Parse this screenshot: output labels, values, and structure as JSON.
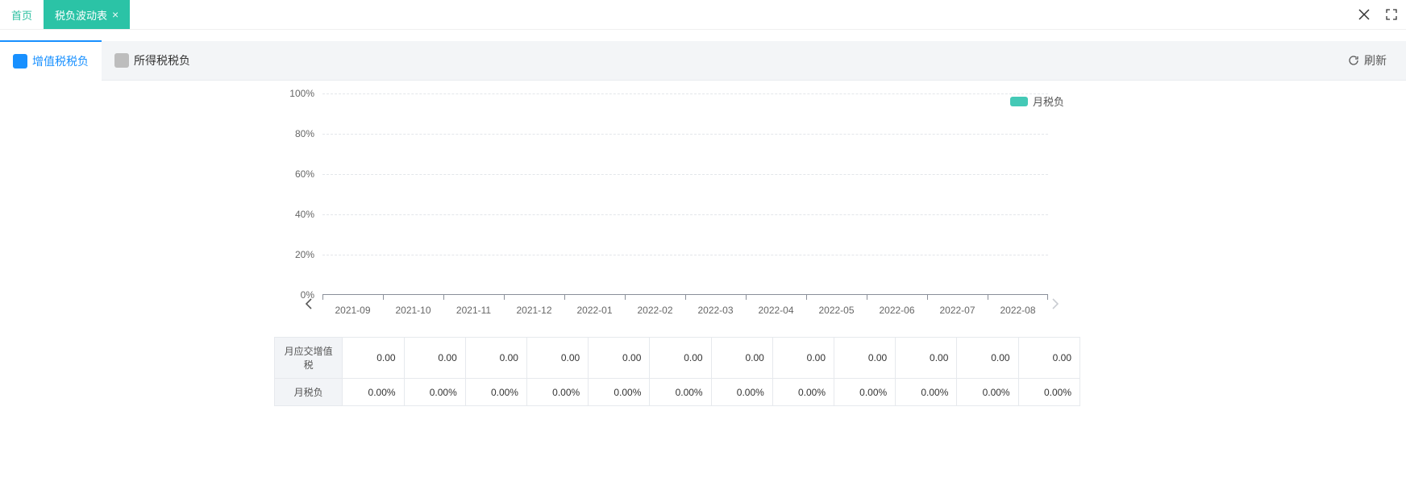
{
  "topTabs": {
    "home": "首页",
    "active": "税负波动表"
  },
  "subTabs": {
    "active": "增值税税负",
    "inactive": "所得税税负"
  },
  "refreshLabel": "刷新",
  "chart": {
    "legendLabel": "月税负",
    "legendColor": "#44c9b6",
    "yTicks": [
      "100%",
      "80%",
      "60%",
      "40%",
      "20%",
      "0%"
    ],
    "xCategories": [
      "2021-09",
      "2021-10",
      "2021-11",
      "2021-12",
      "2022-01",
      "2022-02",
      "2022-03",
      "2022-04",
      "2022-05",
      "2022-06",
      "2022-07",
      "2022-08"
    ],
    "gridColor": "#e3e6ea",
    "axisColor": "#8a8f99",
    "background": "#ffffff"
  },
  "table": {
    "rowHeaders": [
      "月应交增值税",
      "月税负"
    ],
    "rows": [
      [
        "0.00",
        "0.00",
        "0.00",
        "0.00",
        "0.00",
        "0.00",
        "0.00",
        "0.00",
        "0.00",
        "0.00",
        "0.00",
        "0.00"
      ],
      [
        "0.00%",
        "0.00%",
        "0.00%",
        "0.00%",
        "0.00%",
        "0.00%",
        "0.00%",
        "0.00%",
        "0.00%",
        "0.00%",
        "0.00%",
        "0.00%"
      ]
    ]
  }
}
